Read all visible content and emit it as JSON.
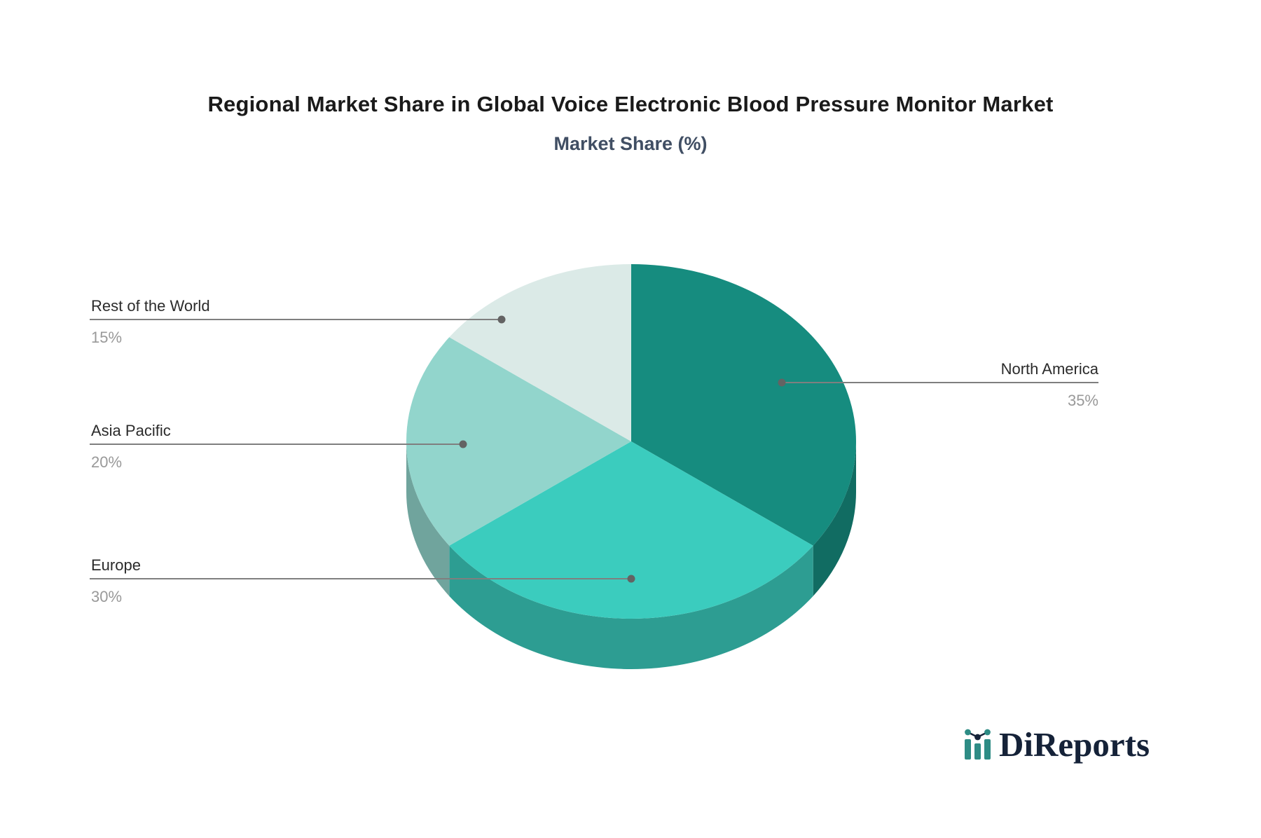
{
  "page": {
    "background": "#ffffff"
  },
  "chart_data": {
    "type": "pie",
    "title": "Regional Market Share in Global Voice Electronic Blood Pressure Monitor Market",
    "subtitle": "Market Share (%)",
    "subtitle_color": "#404e63",
    "unit": "%",
    "effect": "3d",
    "start_angle_deg": 0,
    "direction": "clockwise",
    "legend_position": "none",
    "label_style": "leader-lines",
    "slices": [
      {
        "label": "North America",
        "value": 35,
        "display": "35%",
        "color": "#168C7F"
      },
      {
        "label": "Europe",
        "value": 30,
        "display": "30%",
        "color": "#3BCCBE"
      },
      {
        "label": "Asia Pacific",
        "value": 20,
        "display": "20%",
        "color": "#92D5CC"
      },
      {
        "label": "Rest of the World",
        "value": 15,
        "display": "15%",
        "color": "#DBEAE7"
      }
    ],
    "leader_line_color": "#7f7f7f",
    "leader_dot_color": "#636363",
    "label_text_color": "#2b2b2b",
    "value_text_color": "#999999"
  },
  "logo": {
    "text": "DiReports",
    "icon": "bar-chart-trend-icon",
    "accent": "#2E8C85",
    "navy": "#152238"
  }
}
